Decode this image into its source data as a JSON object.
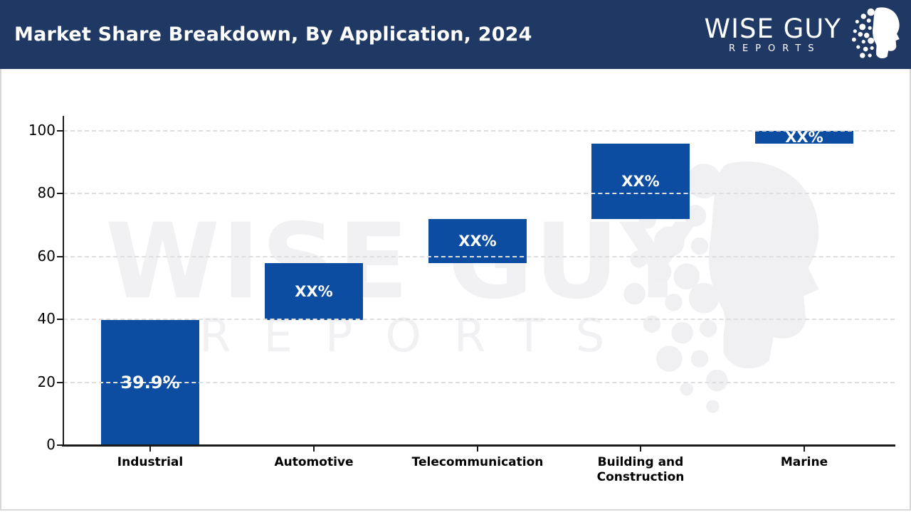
{
  "header": {
    "title": "Market Share Breakdown, By Application, 2024",
    "bg_color": "#1F3864",
    "logo": {
      "line1": "WISE GUY",
      "line2": "REPORTS"
    }
  },
  "watermark": {
    "line1": "WISE GUY",
    "line2": "REPORTS"
  },
  "chart_data": {
    "type": "bar",
    "subtype": "waterfall",
    "title": "Market Share Breakdown, By Application, 2024",
    "xlabel": "",
    "ylabel": "",
    "categories": [
      "Industrial",
      "Automotive",
      "Telecommunication",
      "Building and\nConstruction",
      "Marine"
    ],
    "segments": [
      {
        "category": "Industrial",
        "start": 0,
        "end": 39.9,
        "value": 39.9,
        "label": "39.9%"
      },
      {
        "category": "Automotive",
        "start": 39.9,
        "end": 57.9,
        "value": 18.0,
        "label": "XX%"
      },
      {
        "category": "Telecommunication",
        "start": 57.9,
        "end": 71.9,
        "value": 14.0,
        "label": "XX%"
      },
      {
        "category": "Building and Construction",
        "start": 71.9,
        "end": 95.9,
        "value": 24.0,
        "label": "XX%"
      },
      {
        "category": "Marine",
        "start": 95.9,
        "end": 100,
        "value": 4.1,
        "label": "XX%"
      }
    ],
    "y_ticks": [
      0,
      20,
      40,
      60,
      80,
      100
    ],
    "ylim": [
      0,
      105
    ],
    "grid": "horizontal-dashed",
    "grid_above_bars": true,
    "bar_color": "#0C4DA2",
    "bar_label_color": "#ffffff",
    "axis_color": "#1a1a1a",
    "legend": "none"
  }
}
